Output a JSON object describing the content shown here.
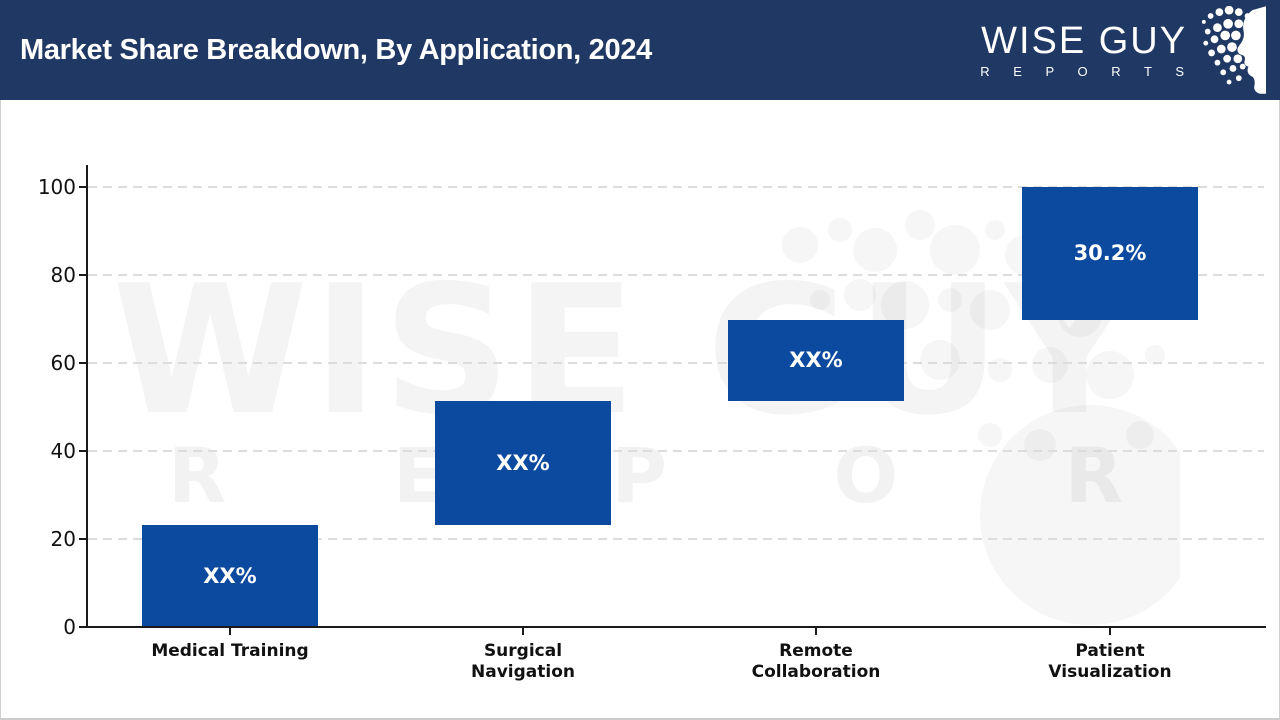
{
  "header": {
    "title": "Market Share Breakdown, By Application, 2024",
    "bg_color": "#1f3864",
    "logo": {
      "primary": "WISE GUY",
      "secondary": "R E P O R T S"
    }
  },
  "watermark": {
    "line1": "WISE GUY",
    "line2": "R E P O R T S"
  },
  "chart_data": {
    "type": "bar",
    "subtype": "floating-waterfall",
    "title": "Market Share Breakdown, By Application, 2024",
    "categories": [
      "Medical Training",
      "Surgical Navigation",
      "Remote Collaboration",
      "Patient Visualization"
    ],
    "categories_display": [
      [
        "Medical Training"
      ],
      [
        "Surgical",
        "Navigation"
      ],
      [
        "Remote",
        "Collaboration"
      ],
      [
        "Patient",
        "Visualization"
      ]
    ],
    "series": [
      {
        "name": "Market Share (%)",
        "segments": [
          {
            "from": 0,
            "to": 23.2
          },
          {
            "from": 23.2,
            "to": 51.2
          },
          {
            "from": 51.2,
            "to": 69.8
          },
          {
            "from": 69.8,
            "to": 100
          }
        ]
      }
    ],
    "bar_labels": [
      "XX%",
      "XX%",
      "XX%",
      "30.2%"
    ],
    "ylim": [
      0,
      105
    ],
    "yticks": [
      0,
      20,
      40,
      60,
      80,
      100
    ],
    "grid": "horizontal-dashed",
    "legend_position": "none",
    "bar_color": "#0b4a9e",
    "bar_label_color": "#ffffff",
    "axis_color": "#1a1a1a"
  }
}
